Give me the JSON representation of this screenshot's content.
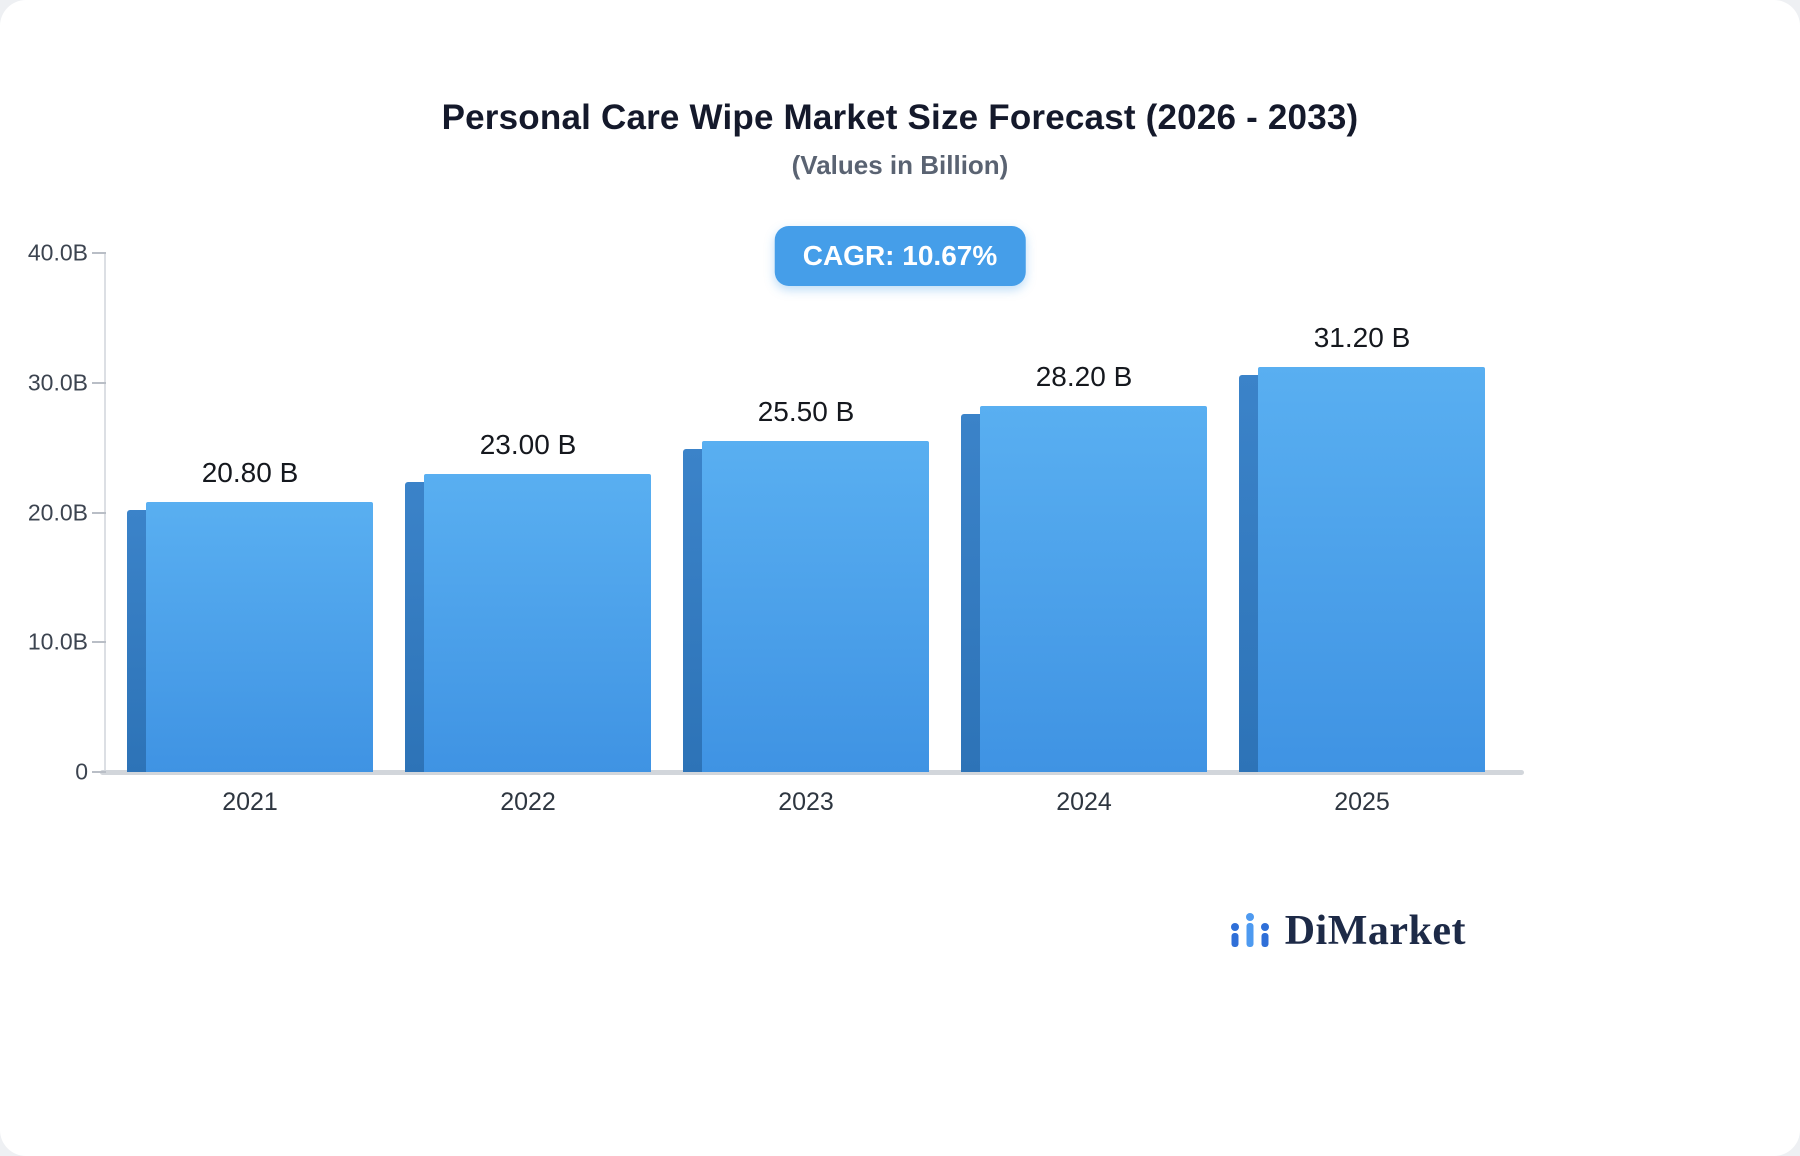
{
  "header": {
    "title": "Personal Care Wipe Market Size Forecast (2026 - 2033)",
    "subtitle": "(Values in Billion)",
    "cagr_badge": "CAGR: 10.67%"
  },
  "logo": {
    "text": "DiMarket",
    "icon": "bar-chart-logo-icon",
    "color": "#1d2a47",
    "icon_color": "#2f6fd8"
  },
  "colors": {
    "bar_top": "#59aff1",
    "bar_bottom": "#3f93e3",
    "bar_side": "#2d73b7",
    "badge": "#459ee9",
    "axis": "#d2d6db"
  },
  "chart_data": {
    "type": "bar",
    "categories": [
      "2021",
      "2022",
      "2023",
      "2024",
      "2025"
    ],
    "values": [
      20.8,
      23.0,
      25.5,
      28.2,
      31.2
    ],
    "value_labels": [
      "20.80 B",
      "23.00 B",
      "25.50 B",
      "28.20 B",
      "31.20 B"
    ],
    "title": "Personal Care Wipe Market Size Forecast (2026 - 2033)",
    "subtitle": "(Values in Billion)",
    "annotation": "CAGR: 10.67%",
    "xlabel": "",
    "ylabel": "",
    "ylim": [
      0,
      40
    ],
    "y_ticks": [
      {
        "label": "40.0B",
        "value": 40
      },
      {
        "label": "30.0B",
        "value": 30
      },
      {
        "label": "20.0B",
        "value": 20
      },
      {
        "label": "10.0B",
        "value": 10
      },
      {
        "label": "0",
        "value": 0
      }
    ],
    "grid": false,
    "legend": false
  }
}
